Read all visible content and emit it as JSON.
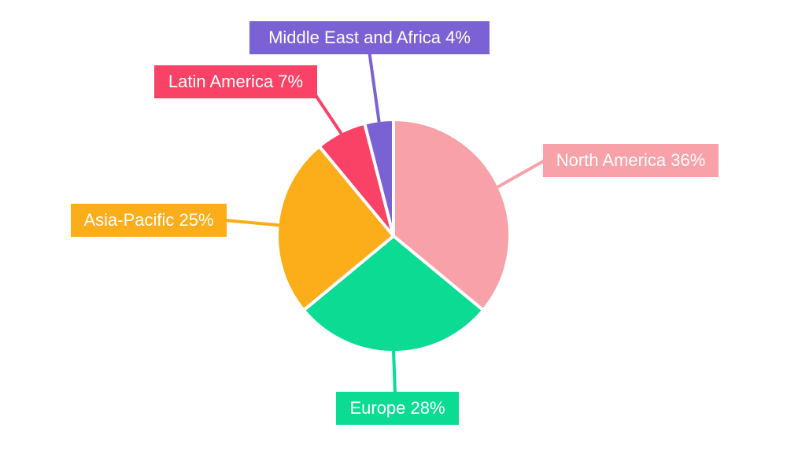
{
  "chart_data": {
    "type": "pie",
    "direction": "clockwise",
    "start_angle": "12-o-clock",
    "background": "#ffffff",
    "label_text_color": "#ffffff",
    "label_style": "colored-boxes-with-leader-lines",
    "slices": [
      {
        "label": "North America",
        "value": 36,
        "display": "North America 36%",
        "color": "#F8A1A8"
      },
      {
        "label": "Europe",
        "value": 28,
        "display": "Europe 28%",
        "color": "#0CDB94"
      },
      {
        "label": "Asia-Pacific",
        "value": 25,
        "display": "Asia-Pacific 25%",
        "color": "#FBAD1A"
      },
      {
        "label": "Latin America",
        "value": 7,
        "display": "Latin America 7%",
        "color": "#FA4266"
      },
      {
        "label": "Middle East and Africa",
        "value": 4,
        "display": "Middle East and Africa 4%",
        "color": "#7A62D4"
      }
    ]
  }
}
